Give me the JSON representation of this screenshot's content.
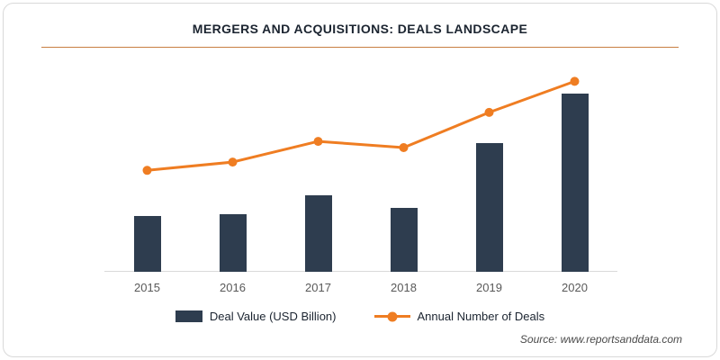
{
  "title": "MERGERS AND ACQUISITIONS: DEALS LANDSCAPE",
  "source": "Source: www.reportsanddata.com",
  "legend": [
    {
      "label": "Deal Value (USD Billion)"
    },
    {
      "label": "Annual Number of Deals"
    }
  ],
  "colors": {
    "bar": "#2e3d4f",
    "line": "#ef7d22",
    "divider": "#c87f42",
    "axis": "#d9d9d9",
    "label": "#595959"
  },
  "chart_data": {
    "type": "bar",
    "categories": [
      "2015",
      "2016",
      "2017",
      "2018",
      "2019",
      "2020"
    ],
    "series": [
      {
        "name": "Deal Value (USD Billion)",
        "type": "bar",
        "values": [
          27,
          28,
          37,
          31,
          62,
          86
        ]
      },
      {
        "name": "Annual Number of Deals",
        "type": "line",
        "values": [
          49,
          53,
          63,
          60,
          77,
          92
        ]
      }
    ],
    "title": "MERGERS AND ACQUISITIONS: DEALS LANDSCAPE",
    "xlabel": "",
    "ylabel": "",
    "ylim": [
      0,
      100
    ],
    "grid": false,
    "legend_position": "bottom"
  }
}
